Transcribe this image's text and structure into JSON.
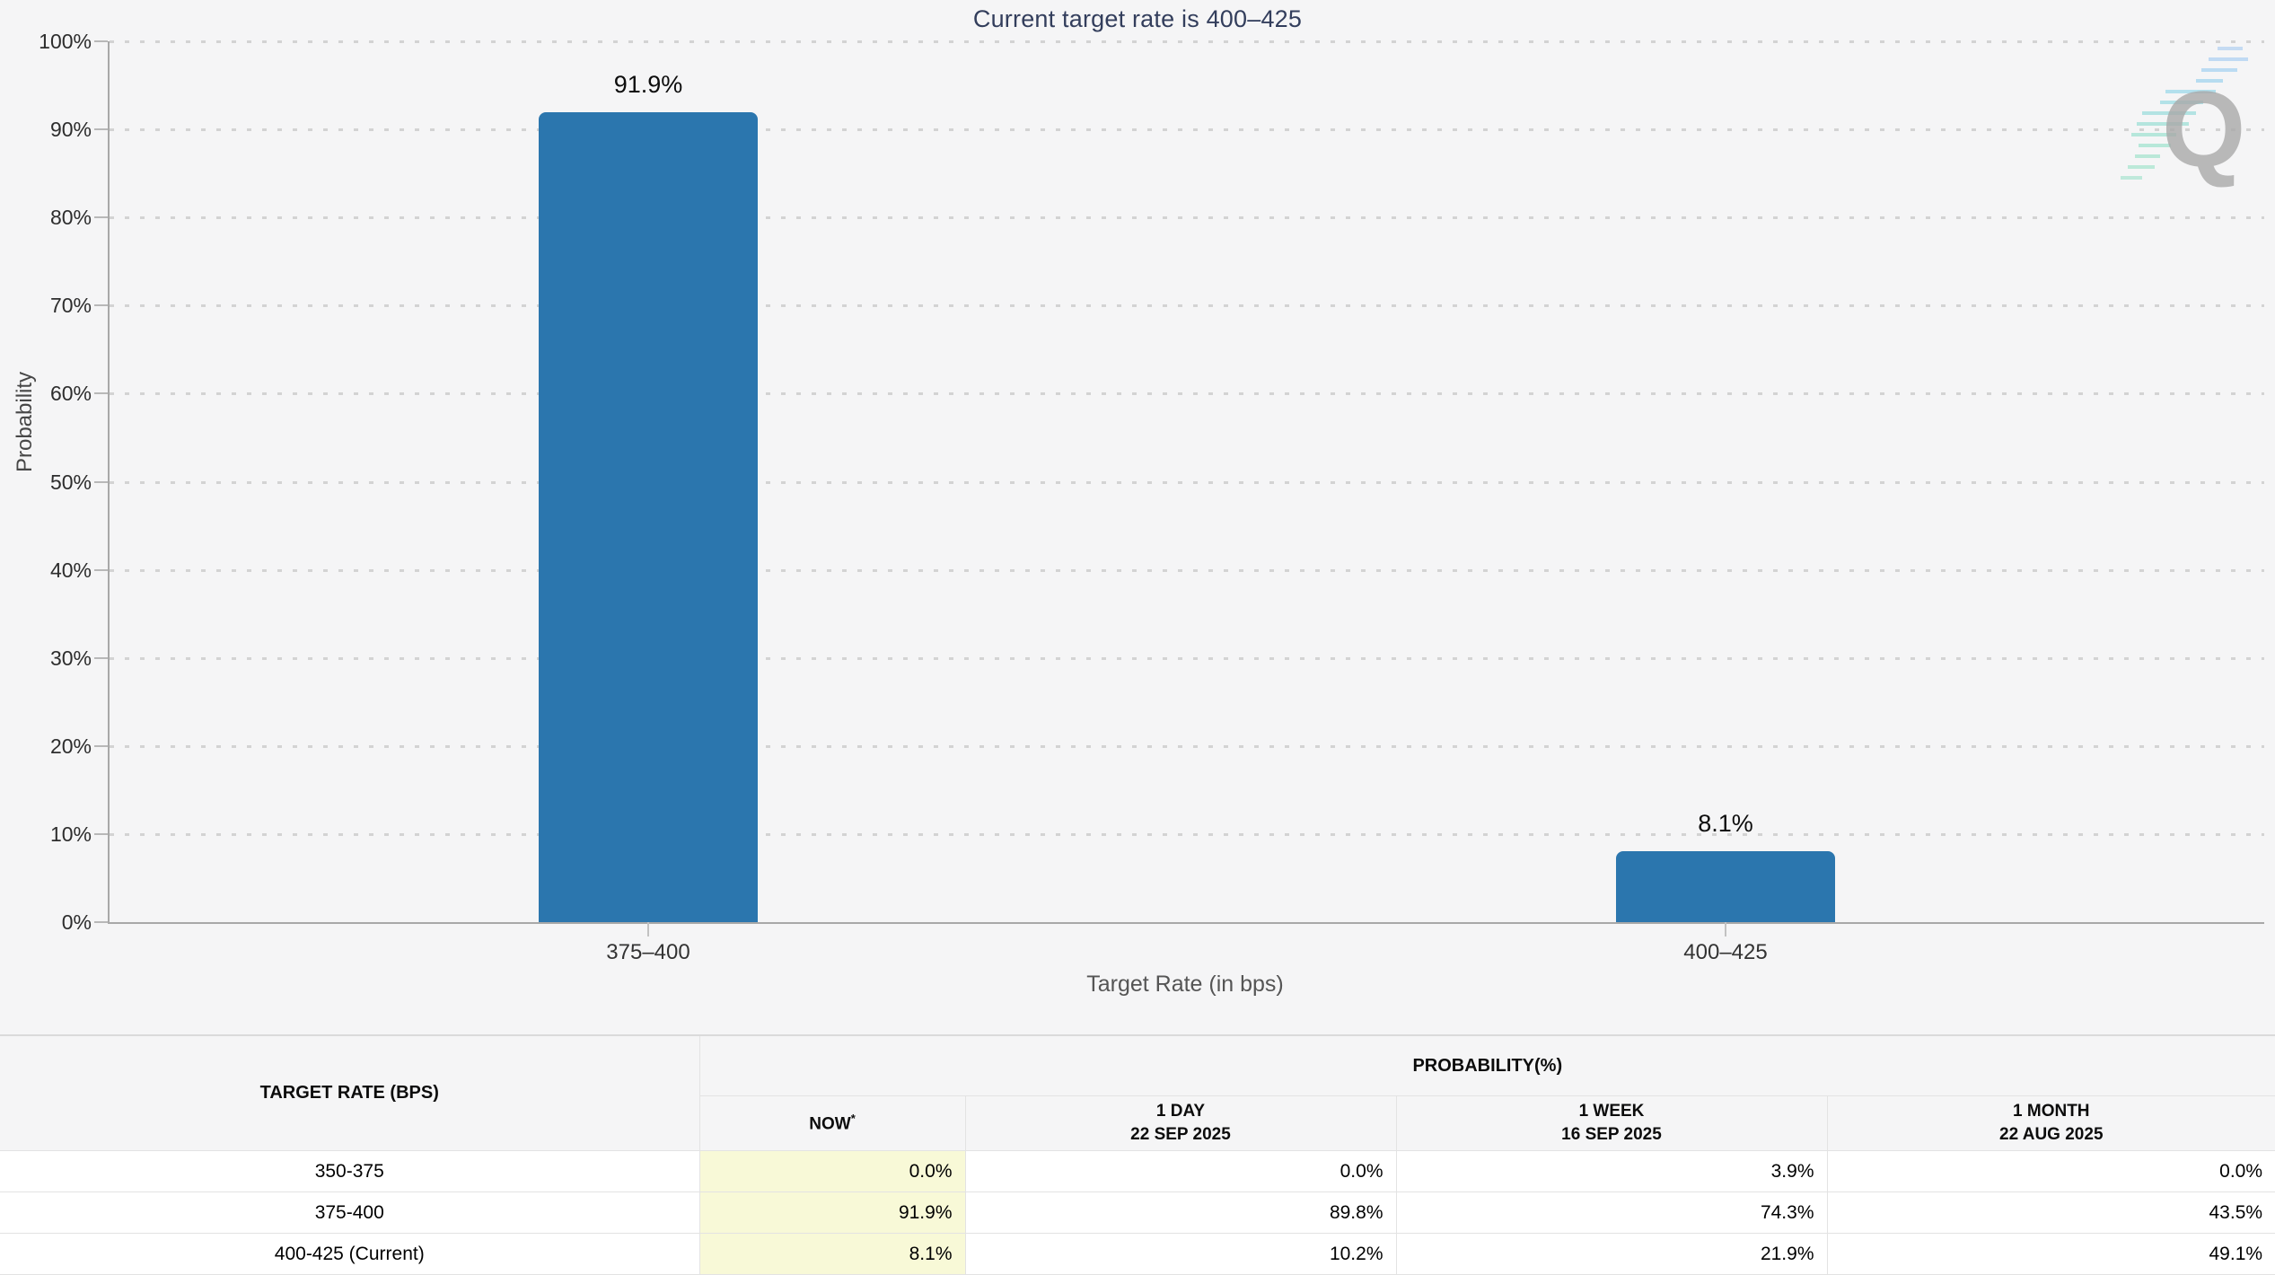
{
  "page": {
    "background": "#f5f5f6"
  },
  "chart_data": {
    "type": "bar",
    "title": "Current target rate is 400–425",
    "title_color": "#333e5c",
    "categories": [
      "375–400",
      "400–425"
    ],
    "values": [
      91.9,
      8.1
    ],
    "value_labels": [
      "91.9%",
      "8.1%"
    ],
    "xlabel": "Target Rate (in bps)",
    "ylabel": "Probability",
    "ylim": [
      0,
      100
    ],
    "ytick_step": 10,
    "ytick_suffix": "%",
    "bar_color": "#2b76ae",
    "grid": "horizontal-dotted",
    "legend": "none"
  },
  "watermark": {
    "letter": "Q"
  },
  "table": {
    "rate_header": "TARGET RATE (BPS)",
    "group_header": "PROBABILITY(%)",
    "now_label": "NOW",
    "now_superscript": "*",
    "now_highlight": "#f8f9d7",
    "columns": [
      {
        "label": "1 DAY",
        "date": "22 SEP 2025"
      },
      {
        "label": "1 WEEK",
        "date": "16 SEP 2025"
      },
      {
        "label": "1 MONTH",
        "date": "22 AUG 2025"
      }
    ],
    "rows": [
      {
        "rate": "350-375",
        "now": "0.0%",
        "day": "0.0%",
        "week": "3.9%",
        "month": "0.0%"
      },
      {
        "rate": "375-400",
        "now": "91.9%",
        "day": "89.8%",
        "week": "74.3%",
        "month": "43.5%"
      },
      {
        "rate": "400-425 (Current)",
        "now": "8.1%",
        "day": "10.2%",
        "week": "21.9%",
        "month": "49.1%"
      }
    ]
  }
}
